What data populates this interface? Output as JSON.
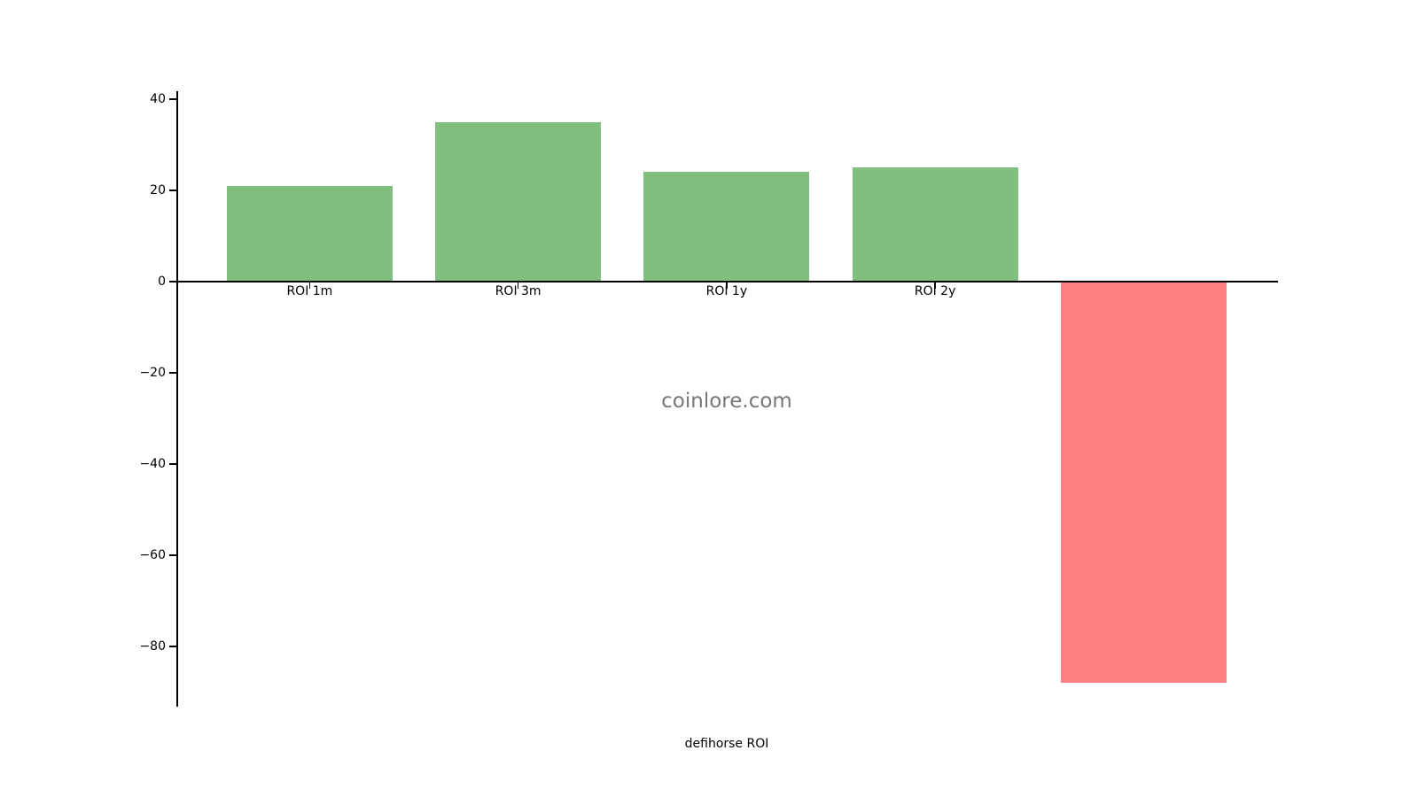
{
  "chart_data": {
    "type": "bar",
    "title": "defihorse ROI",
    "xlabel": "defihorse ROI",
    "ylabel": "",
    "watermark": "coinlore.com",
    "categories": [
      "ROI 1m",
      "ROI 3m",
      "ROI 1y",
      "ROI 2y",
      ""
    ],
    "values": [
      21,
      35,
      24,
      25,
      -88
    ],
    "positive_color": "#80bf80",
    "negative_color": "#ff8080",
    "axis_color": "#000000",
    "tick_label_color": "#000000",
    "watermark_color": "#777777",
    "background_color": "#ffffff",
    "ylim": [
      -93.2,
      41.75
    ],
    "yticks": [
      40,
      20,
      0,
      -20,
      -40,
      -60,
      -80
    ],
    "ytick_labels": [
      "40",
      "20",
      "0",
      "−20",
      "−40",
      "−60",
      "−80"
    ],
    "grid": false,
    "legend": false
  }
}
